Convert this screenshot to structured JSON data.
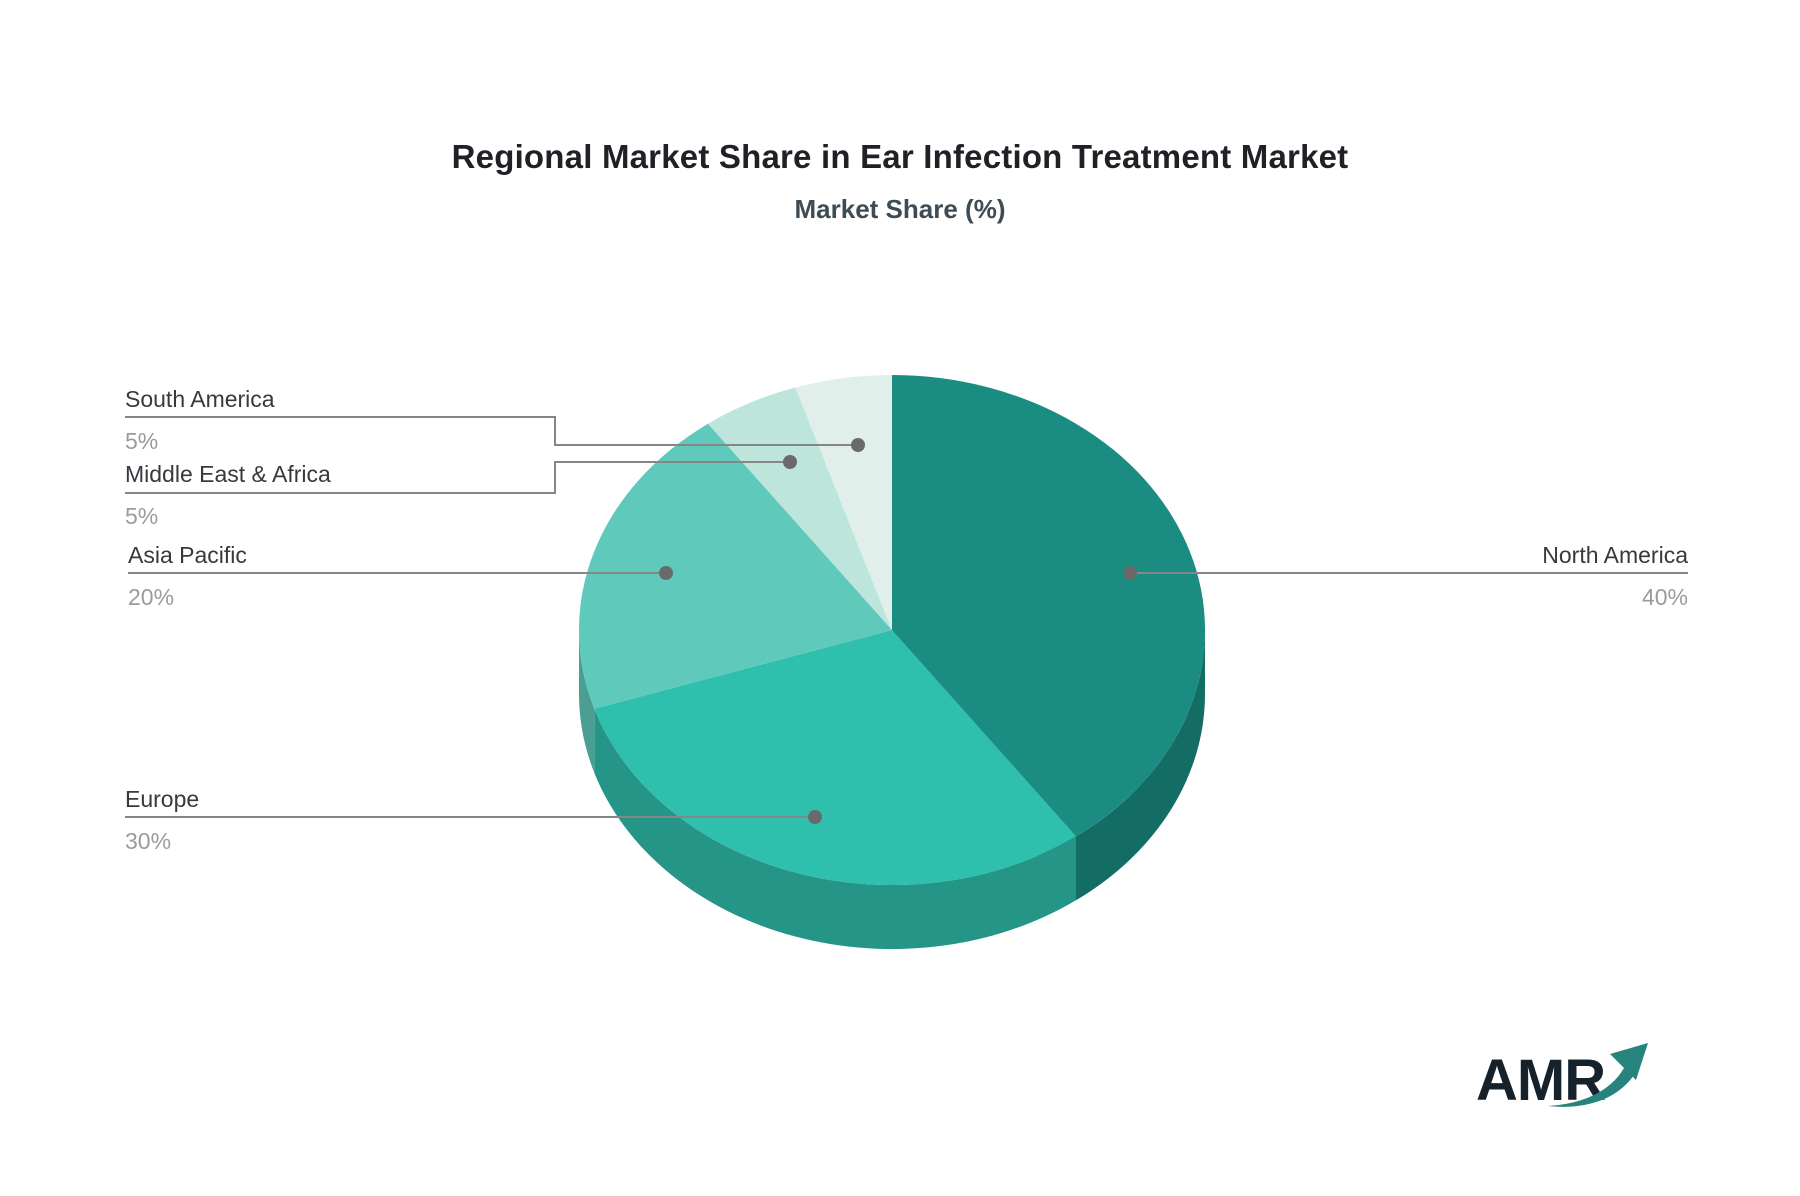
{
  "header": {
    "title": "Regional Market Share in Ear Infection Treatment Market",
    "subtitle": "Market Share (%)"
  },
  "chart_data": {
    "type": "pie",
    "title": "Regional Market Share in Ear Infection Treatment Market",
    "subtitle": "Market Share (%)",
    "unit": "%",
    "effect": "3d",
    "start_angle_deg": 0,
    "direction": "clockwise",
    "legend_position": "callouts",
    "slices": [
      {
        "label": "North America",
        "value": 40,
        "pct_label": "40%",
        "color": "#1A8C81",
        "callout_side": "right"
      },
      {
        "label": "Europe",
        "value": 30,
        "pct_label": "30%",
        "color": "#2FBFAD",
        "callout_side": "left"
      },
      {
        "label": "Asia Pacific",
        "value": 20,
        "pct_label": "20%",
        "color": "#5FCABB",
        "callout_side": "left"
      },
      {
        "label": "Middle East & Africa",
        "value": 5,
        "pct_label": "5%",
        "color": "#BEE5DC",
        "callout_side": "left"
      },
      {
        "label": "South America",
        "value": 5,
        "pct_label": "5%",
        "color": "#E0EFEA",
        "callout_side": "left"
      }
    ]
  },
  "palette": {
    "connector_line": "#868686",
    "connector_dot": "#6a6a6a",
    "label_text": "#36393d",
    "pct_text": "#9b9b9b"
  },
  "branding": {
    "logo_text": "AMR",
    "logo_color": "#15222c",
    "arrow_color": "#26847d"
  }
}
